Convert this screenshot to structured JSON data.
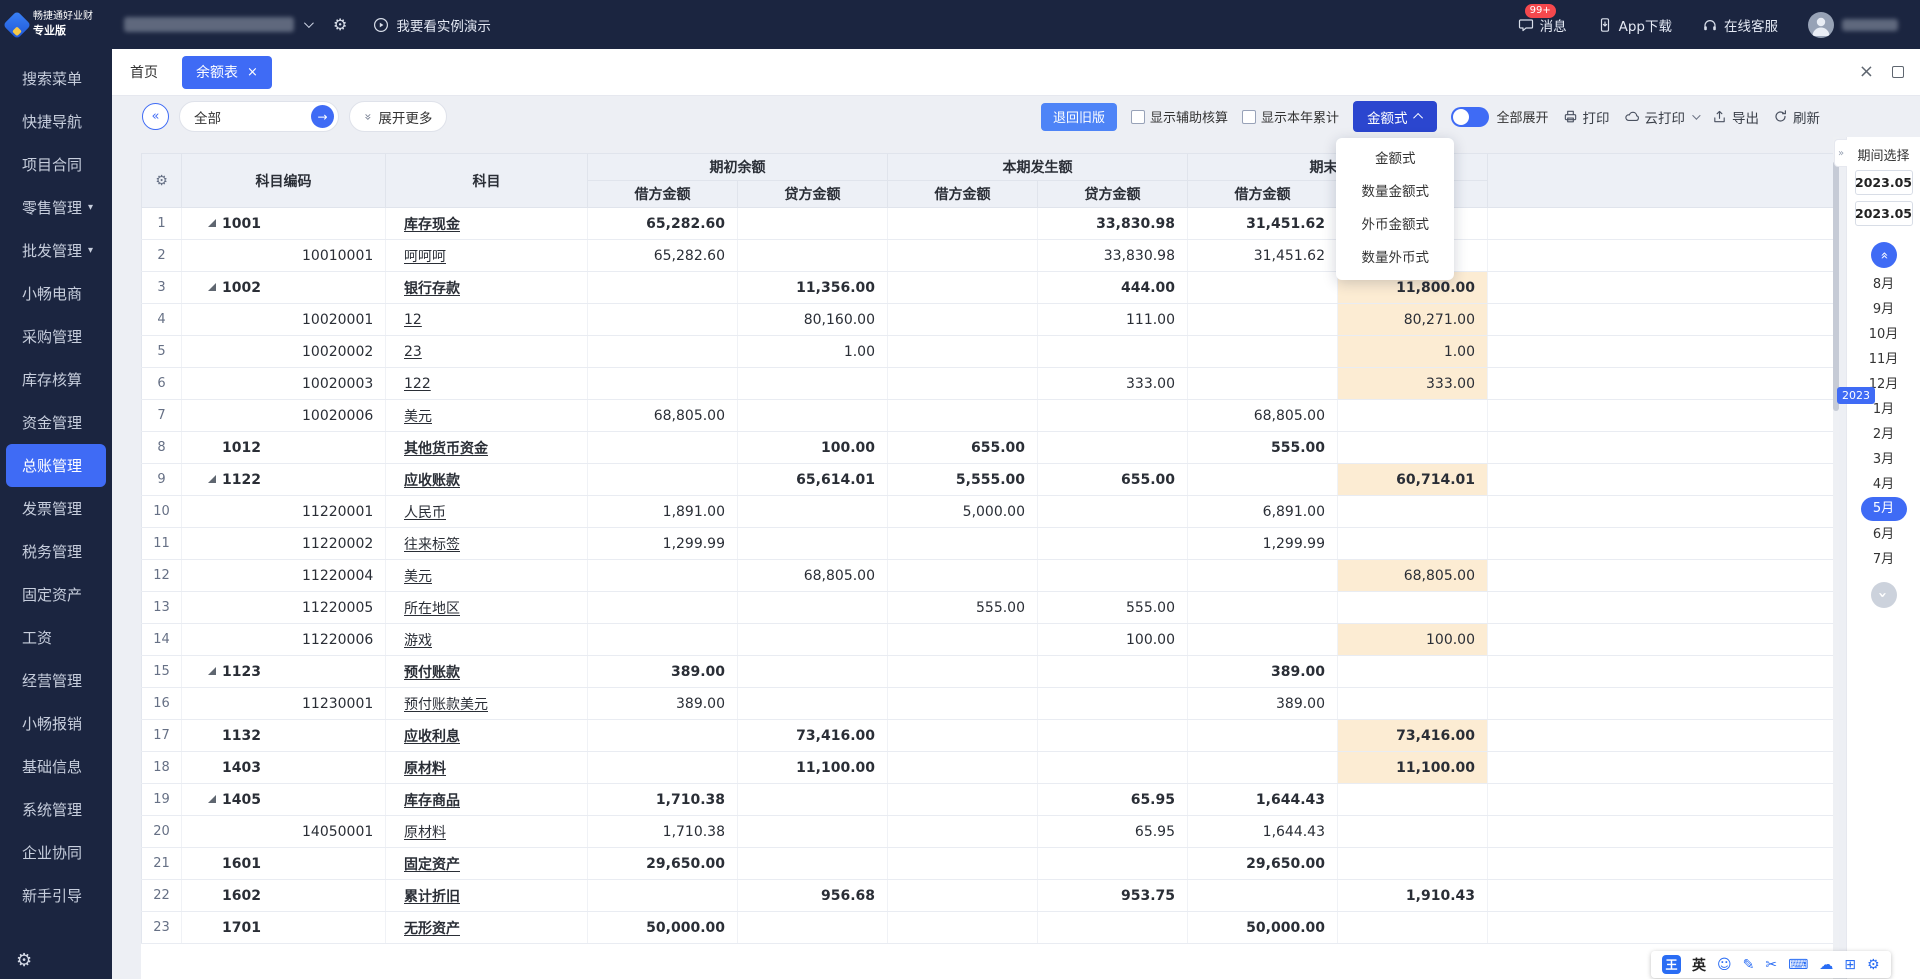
{
  "brand": {
    "line1": "畅捷通好业财",
    "line2": "专业版"
  },
  "topbar": {
    "demo": "我要看实例演示",
    "message": "消息",
    "message_badge": "99+",
    "app_download": "App下载",
    "support": "在线客服"
  },
  "sidebar": {
    "items": [
      {
        "label": "搜索菜单"
      },
      {
        "label": "快捷导航"
      },
      {
        "label": "项目合同"
      },
      {
        "label": "零售管理",
        "chevron": true
      },
      {
        "label": "批发管理",
        "chevron": true
      },
      {
        "label": "小畅电商"
      },
      {
        "label": "采购管理"
      },
      {
        "label": "库存核算"
      },
      {
        "label": "资金管理"
      },
      {
        "label": "总账管理",
        "active": true
      },
      {
        "label": "发票管理"
      },
      {
        "label": "税务管理"
      },
      {
        "label": "固定资产"
      },
      {
        "label": "工资"
      },
      {
        "label": "经营管理"
      },
      {
        "label": "小畅报销"
      },
      {
        "label": "基础信息"
      },
      {
        "label": "系统管理"
      },
      {
        "label": "企业协同"
      },
      {
        "label": "新手引导"
      }
    ]
  },
  "tabs": {
    "items": [
      {
        "label": "首页",
        "active": false,
        "closable": false
      },
      {
        "label": "余额表",
        "active": true,
        "closable": true
      }
    ]
  },
  "toolbar": {
    "filter": "全部",
    "expand_more": "展开更多",
    "back_old": "退回旧版",
    "show_aux": "显示辅助核算",
    "show_ytd": "显示本年累计",
    "format": "金额式",
    "expand_all": "全部展开",
    "print": "打印",
    "cloud_print": "云打印",
    "export": "导出",
    "refresh": "刷新"
  },
  "format_menu": {
    "selected": "金额式",
    "items": [
      "金额式",
      "数量金额式",
      "外币金额式",
      "数量外币式"
    ]
  },
  "table": {
    "headers": {
      "code": "科目编码",
      "subject": "科目",
      "groups": [
        "期初余额",
        "本期发生额",
        "期末余额"
      ],
      "debit": "借方金额",
      "credit": "贷方金额"
    },
    "rows": [
      {
        "num": 1,
        "code": "1001",
        "name": "库存现金",
        "child": false,
        "expand": true,
        "bold": true,
        "v": [
          "65,282.60",
          "",
          "",
          "33,830.98",
          "31,451.62",
          ""
        ],
        "hl": []
      },
      {
        "num": 2,
        "code": "10010001",
        "name": "呵呵呵",
        "child": true,
        "expand": false,
        "bold": false,
        "v": [
          "65,282.60",
          "",
          "",
          "33,830.98",
          "31,451.62",
          ""
        ],
        "hl": []
      },
      {
        "num": 3,
        "code": "1002",
        "name": "银行存款",
        "child": false,
        "expand": true,
        "bold": true,
        "v": [
          "",
          "11,356.00",
          "",
          "444.00",
          "",
          "11,800.00"
        ],
        "hl": [
          5
        ]
      },
      {
        "num": 4,
        "code": "10020001",
        "name": "12",
        "child": true,
        "expand": false,
        "bold": false,
        "v": [
          "",
          "80,160.00",
          "",
          "111.00",
          "",
          "80,271.00"
        ],
        "hl": [
          5
        ]
      },
      {
        "num": 5,
        "code": "10020002",
        "name": "23",
        "child": true,
        "expand": false,
        "bold": false,
        "v": [
          "",
          "1.00",
          "",
          "",
          "",
          "1.00"
        ],
        "hl": [
          5
        ]
      },
      {
        "num": 6,
        "code": "10020003",
        "name": "122",
        "child": true,
        "expand": false,
        "bold": false,
        "v": [
          "",
          "",
          "",
          "333.00",
          "",
          "333.00"
        ],
        "hl": [
          5
        ]
      },
      {
        "num": 7,
        "code": "10020006",
        "name": "美元",
        "child": true,
        "expand": false,
        "bold": false,
        "v": [
          "68,805.00",
          "",
          "",
          "",
          "68,805.00",
          ""
        ],
        "hl": []
      },
      {
        "num": 8,
        "code": "1012",
        "name": "其他货币资金",
        "child": false,
        "expand": false,
        "bold": true,
        "v": [
          "",
          "100.00",
          "655.00",
          "",
          "555.00",
          ""
        ],
        "hl": []
      },
      {
        "num": 9,
        "code": "1122",
        "name": "应收账款",
        "child": false,
        "expand": true,
        "bold": true,
        "v": [
          "",
          "65,614.01",
          "5,555.00",
          "655.00",
          "",
          "60,714.01"
        ],
        "hl": [
          5
        ]
      },
      {
        "num": 10,
        "code": "11220001",
        "name": "人民币",
        "child": true,
        "expand": false,
        "bold": false,
        "v": [
          "1,891.00",
          "",
          "5,000.00",
          "",
          "6,891.00",
          ""
        ],
        "hl": []
      },
      {
        "num": 11,
        "code": "11220002",
        "name": "往来标签",
        "child": true,
        "expand": false,
        "bold": false,
        "v": [
          "1,299.99",
          "",
          "",
          "",
          "1,299.99",
          ""
        ],
        "hl": []
      },
      {
        "num": 12,
        "code": "11220004",
        "name": "美元",
        "child": true,
        "expand": false,
        "bold": false,
        "v": [
          "",
          "68,805.00",
          "",
          "",
          "",
          "68,805.00"
        ],
        "hl": [
          5
        ]
      },
      {
        "num": 13,
        "code": "11220005",
        "name": "所在地区",
        "child": true,
        "expand": false,
        "bold": false,
        "v": [
          "",
          "",
          "555.00",
          "555.00",
          "",
          ""
        ],
        "hl": []
      },
      {
        "num": 14,
        "code": "11220006",
        "name": "游戏",
        "child": true,
        "expand": false,
        "bold": false,
        "v": [
          "",
          "",
          "",
          "100.00",
          "",
          "100.00"
        ],
        "hl": [
          5
        ]
      },
      {
        "num": 15,
        "code": "1123",
        "name": "预付账款",
        "child": false,
        "expand": true,
        "bold": true,
        "v": [
          "389.00",
          "",
          "",
          "",
          "389.00",
          ""
        ],
        "hl": []
      },
      {
        "num": 16,
        "code": "11230001",
        "name": "预付账款美元",
        "child": true,
        "expand": false,
        "bold": false,
        "v": [
          "389.00",
          "",
          "",
          "",
          "389.00",
          ""
        ],
        "hl": []
      },
      {
        "num": 17,
        "code": "1132",
        "name": "应收利息",
        "child": false,
        "expand": false,
        "bold": true,
        "v": [
          "",
          "73,416.00",
          "",
          "",
          "",
          "73,416.00"
        ],
        "hl": [
          5
        ]
      },
      {
        "num": 18,
        "code": "1403",
        "name": "原材料",
        "child": false,
        "expand": false,
        "bold": true,
        "v": [
          "",
          "11,100.00",
          "",
          "",
          "",
          "11,100.00"
        ],
        "hl": [
          5
        ]
      },
      {
        "num": 19,
        "code": "1405",
        "name": "库存商品",
        "child": false,
        "expand": true,
        "bold": true,
        "v": [
          "1,710.38",
          "",
          "",
          "65.95",
          "1,644.43",
          ""
        ],
        "hl": []
      },
      {
        "num": 20,
        "code": "14050001",
        "name": "原材料",
        "child": true,
        "expand": false,
        "bold": false,
        "v": [
          "1,710.38",
          "",
          "",
          "65.95",
          "1,644.43",
          ""
        ],
        "hl": []
      },
      {
        "num": 21,
        "code": "1601",
        "name": "固定资产",
        "child": false,
        "expand": false,
        "bold": true,
        "v": [
          "29,650.00",
          "",
          "",
          "",
          "29,650.00",
          ""
        ],
        "hl": []
      },
      {
        "num": 22,
        "code": "1602",
        "name": "累计折旧",
        "child": false,
        "expand": false,
        "bold": true,
        "v": [
          "",
          "956.68",
          "",
          "953.75",
          "",
          "1,910.43"
        ],
        "hl": []
      },
      {
        "num": 23,
        "code": "1701",
        "name": "无形资产",
        "child": false,
        "expand": false,
        "bold": true,
        "v": [
          "50,000.00",
          "",
          "",
          "",
          "50,000.00",
          ""
        ],
        "hl": []
      }
    ]
  },
  "period": {
    "title": "期间选择",
    "from": "2023.05",
    "to": "2023.05",
    "year_badge": "2023",
    "months": [
      "8月",
      "9月",
      "10月",
      "11月",
      "12月",
      "1月",
      "2月",
      "3月",
      "4月",
      "5月",
      "6月",
      "7月"
    ],
    "selected": "5月"
  },
  "ime": {
    "logo": "王",
    "lang": "英",
    "tools": [
      {
        "name": "emoji-icon",
        "glyph": "☺"
      },
      {
        "name": "pen-icon",
        "glyph": "✎"
      },
      {
        "name": "scissors-icon",
        "glyph": "✂"
      },
      {
        "name": "keyboard-icon",
        "glyph": "⌨"
      },
      {
        "name": "cloud-icon",
        "glyph": "☁"
      },
      {
        "name": "grid-icon",
        "glyph": "⊞"
      },
      {
        "name": "settings-gear-icon",
        "glyph": "⚙"
      }
    ]
  },
  "glyphs": {
    "gear": "⚙",
    "back": "«",
    "go": "→",
    "caret_down": "▾",
    "tab_close": "×",
    "close": "×",
    "chev_dbl": "«",
    "chev_single": "›",
    "panel_expand": "»"
  },
  "colors": {
    "accent": "#3f6bf5",
    "format_button": "#2b46cf",
    "navy": "#1b2540",
    "highlight_cell": "#fcecd3",
    "badge_red": "#f5484d"
  }
}
